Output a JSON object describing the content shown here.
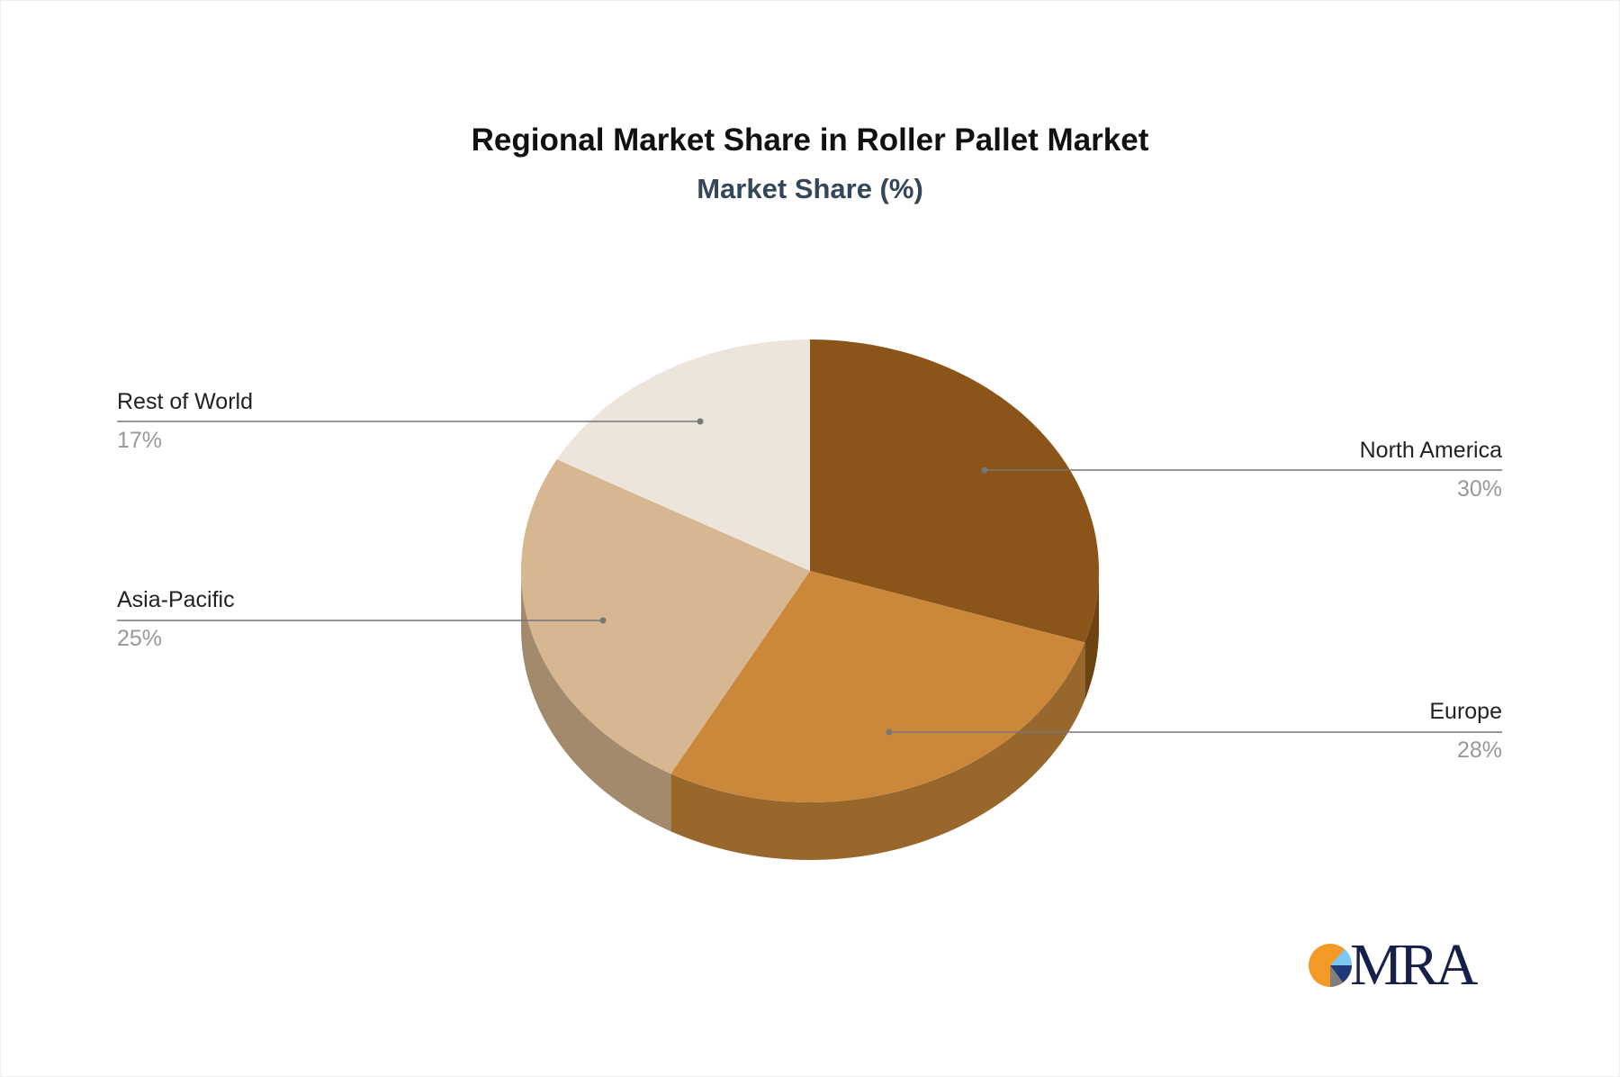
{
  "chart_data": {
    "type": "pie",
    "title": "Regional Market Share in Roller Pallet Market",
    "subtitle": "Market Share (%)",
    "style": "3d",
    "slices": [
      {
        "label": "North America",
        "value": 30,
        "value_label": "30%",
        "color": "#8B5519",
        "side_color": "#6E4312"
      },
      {
        "label": "Europe",
        "value": 28,
        "value_label": "28%",
        "color": "#CB883B",
        "side_color": "#98672C"
      },
      {
        "label": "Asia-Pacific",
        "value": 25,
        "value_label": "25%",
        "color": "#D7B791",
        "side_color": "#A38A6D"
      },
      {
        "label": "Rest of World",
        "value": 17,
        "value_label": "17%",
        "color": "#EDE4DB",
        "side_color": "#C9BFB4"
      }
    ]
  },
  "logo": {
    "text": "MRA"
  }
}
